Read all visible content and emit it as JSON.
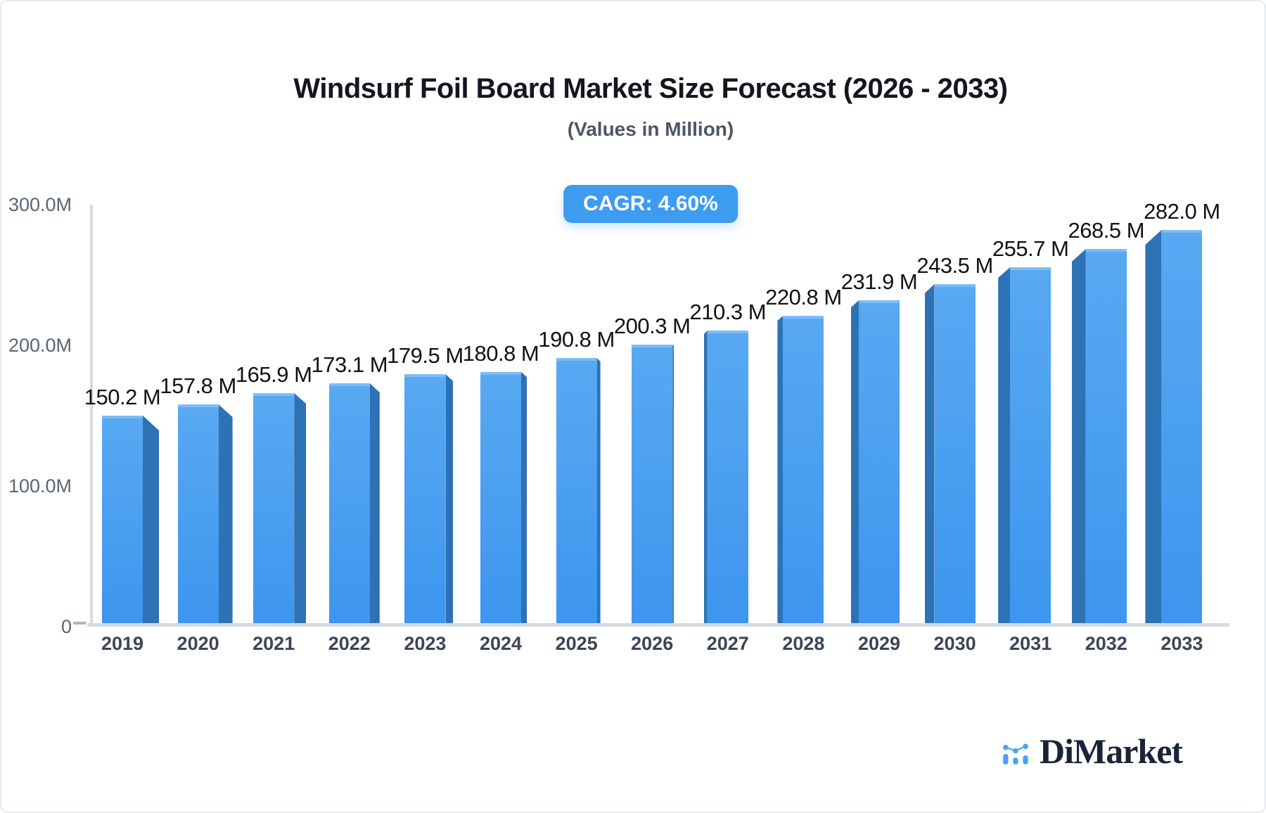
{
  "header": {
    "title": "Windsurf Foil Board Market Size Forecast (2026 - 2033)",
    "subtitle": "(Values in Million)"
  },
  "cagr_badge": {
    "label": "CAGR: 4.60%"
  },
  "chart_data": {
    "type": "bar",
    "style": "3d-column-perspective",
    "title": "Windsurf Foil Board Market Size Forecast (2026 - 2033)",
    "subtitle": "(Values in Million)",
    "categories": [
      "2019",
      "2020",
      "2021",
      "2022",
      "2023",
      "2024",
      "2025",
      "2026",
      "2027",
      "2028",
      "2029",
      "2030",
      "2031",
      "2032",
      "2033"
    ],
    "values": [
      150.2,
      157.8,
      165.9,
      173.1,
      179.5,
      180.8,
      190.8,
      200.3,
      210.3,
      220.8,
      231.9,
      243.5,
      255.7,
      268.5,
      282.0
    ],
    "unit": "M",
    "value_label_format": "#.# M",
    "cagr_label": "CAGR: 4.60%",
    "y_ticks": [
      "300.0M",
      "200.0M",
      "100.0M",
      "0"
    ],
    "ylim": [
      0,
      300
    ],
    "xlabel": "",
    "ylabel": "",
    "grid": false,
    "legend": "none",
    "colors": {
      "bar_front_top": "#58a9f2",
      "bar_front_bottom": "#3d95ee",
      "bar_side": "#2c72b5",
      "bar_top_highlight": "#7cbdf6",
      "axis_line": "#d6dade",
      "tick_text": "#5a6472",
      "category_text": "#3c4554",
      "value_text": "#101114",
      "badge_bg": "#3d9bf0",
      "badge_text": "#ffffff"
    }
  },
  "branding": {
    "name": "DiMarket",
    "icon": "bar-chart-trend-logo-icon"
  }
}
